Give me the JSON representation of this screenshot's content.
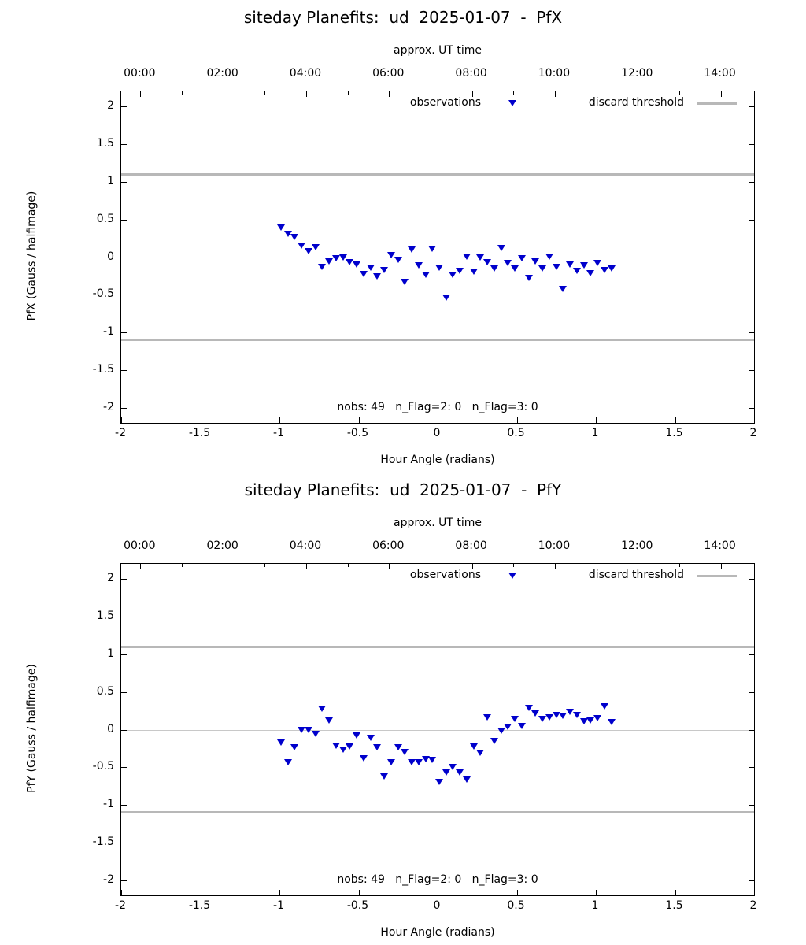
{
  "page": {
    "background": "#ffffff"
  },
  "colors": {
    "marker_blue": "#0000cc",
    "threshold_gray": "#b8b8b8",
    "zero_line_gray": "#c8c8c8",
    "axis_black": "#000000",
    "text_black": "#000000"
  },
  "stats": {
    "nobs": 49,
    "n_flag2": 0,
    "n_flag3": 0
  },
  "chart_data": [
    {
      "type": "scatter",
      "title": "siteday Planefits:  ud  2025-01-07  -  PfX",
      "x2label": "approx. UT time",
      "xlabel": "Hour Angle (radians)",
      "ylabel": "PfX (Gauss / halfimage)",
      "xlim": [
        -2,
        2
      ],
      "ylim": [
        -2.2,
        2.2
      ],
      "grid": false,
      "legend_position": "top-right-inside",
      "xtick_values": [
        -2,
        -1.5,
        -1,
        -0.5,
        0,
        0.5,
        1,
        1.5,
        2
      ],
      "xtick_labels": [
        "-2",
        "-1.5",
        "-1",
        "-0.5",
        "0",
        "0.5",
        "1",
        "1.5",
        "2"
      ],
      "ytick_values": [
        2,
        1.5,
        1,
        0.5,
        0,
        -0.5,
        -1,
        -1.5,
        -2
      ],
      "ytick_labels": [
        "2",
        "1.5",
        "1",
        "0.5",
        "0",
        "-0.5",
        "-1",
        "-1.5",
        "-2"
      ],
      "x2tick_labels": [
        "00:00",
        "02:00",
        "04:00",
        "06:00",
        "08:00",
        "10:00",
        "12:00",
        "14:00"
      ],
      "x2tick_positions": [
        -1.879,
        -1.355,
        -0.831,
        -0.307,
        0.217,
        0.741,
        1.265,
        1.789
      ],
      "zero_line": 0,
      "thresholds": [
        1.1,
        -1.1
      ],
      "legend": {
        "observations_label": "observations",
        "threshold_label": "discard threshold"
      },
      "stats_text": "nobs: 49   n_Flag=2: 0   n_Flag=3: 0",
      "series": [
        {
          "name": "observations",
          "marker": "triangle-down",
          "color": "#0000cc",
          "points": [
            [
              -0.99,
              0.39
            ],
            [
              -0.947,
              0.31
            ],
            [
              -0.903,
              0.27
            ],
            [
              -0.86,
              0.15
            ],
            [
              -0.816,
              0.08
            ],
            [
              -0.773,
              0.13
            ],
            [
              -0.729,
              -0.13
            ],
            [
              -0.686,
              -0.06
            ],
            [
              -0.642,
              -0.02
            ],
            [
              -0.599,
              0.0
            ],
            [
              -0.555,
              -0.07
            ],
            [
              -0.512,
              -0.1
            ],
            [
              -0.468,
              -0.22
            ],
            [
              -0.425,
              -0.14
            ],
            [
              -0.381,
              -0.26
            ],
            [
              -0.338,
              -0.17
            ],
            [
              -0.294,
              0.03
            ],
            [
              -0.251,
              -0.04
            ],
            [
              -0.207,
              -0.33
            ],
            [
              -0.164,
              0.1
            ],
            [
              -0.12,
              -0.11
            ],
            [
              -0.077,
              -0.24
            ],
            [
              -0.033,
              0.11
            ],
            [
              0.01,
              -0.14
            ],
            [
              0.054,
              -0.54
            ],
            [
              0.097,
              -0.24
            ],
            [
              0.141,
              -0.18
            ],
            [
              0.184,
              0.01
            ],
            [
              0.228,
              -0.19
            ],
            [
              0.271,
              -0.01
            ],
            [
              0.315,
              -0.07
            ],
            [
              0.358,
              -0.15
            ],
            [
              0.402,
              0.12
            ],
            [
              0.445,
              -0.08
            ],
            [
              0.489,
              -0.15
            ],
            [
              0.532,
              -0.02
            ],
            [
              0.576,
              -0.28
            ],
            [
              0.619,
              -0.06
            ],
            [
              0.663,
              -0.15
            ],
            [
              0.706,
              0.01
            ],
            [
              0.75,
              -0.13
            ],
            [
              0.793,
              -0.42
            ],
            [
              0.837,
              -0.1
            ],
            [
              0.88,
              -0.18
            ],
            [
              0.924,
              -0.11
            ],
            [
              0.967,
              -0.21
            ],
            [
              1.011,
              -0.08
            ],
            [
              1.054,
              -0.17
            ],
            [
              1.098,
              -0.15
            ]
          ]
        }
      ]
    },
    {
      "type": "scatter",
      "title": "siteday Planefits:  ud  2025-01-07  -  PfY",
      "x2label": "approx. UT time",
      "xlabel": "Hour Angle (radians)",
      "ylabel": "PfY (Gauss / halfimage)",
      "xlim": [
        -2,
        2
      ],
      "ylim": [
        -2.2,
        2.2
      ],
      "grid": false,
      "legend_position": "top-right-inside",
      "xtick_values": [
        -2,
        -1.5,
        -1,
        -0.5,
        0,
        0.5,
        1,
        1.5,
        2
      ],
      "xtick_labels": [
        "-2",
        "-1.5",
        "-1",
        "-0.5",
        "0",
        "0.5",
        "1",
        "1.5",
        "2"
      ],
      "ytick_values": [
        2,
        1.5,
        1,
        0.5,
        0,
        -0.5,
        -1,
        -1.5,
        -2
      ],
      "ytick_labels": [
        "2",
        "1.5",
        "1",
        "0.5",
        "0",
        "-0.5",
        "-1",
        "-1.5",
        "-2"
      ],
      "x2tick_labels": [
        "00:00",
        "02:00",
        "04:00",
        "06:00",
        "08:00",
        "10:00",
        "12:00",
        "14:00"
      ],
      "x2tick_positions": [
        -1.879,
        -1.355,
        -0.831,
        -0.307,
        0.217,
        0.741,
        1.265,
        1.789
      ],
      "zero_line": 0,
      "thresholds": [
        1.1,
        -1.1
      ],
      "legend": {
        "observations_label": "observations",
        "threshold_label": "discard threshold"
      },
      "stats_text": "nobs: 49   n_Flag=2: 0   n_Flag=3: 0",
      "series": [
        {
          "name": "observations",
          "marker": "triangle-down",
          "color": "#0000cc",
          "points": [
            [
              -0.99,
              -0.17
            ],
            [
              -0.947,
              -0.43
            ],
            [
              -0.903,
              -0.23
            ],
            [
              -0.86,
              -0.01
            ],
            [
              -0.816,
              -0.01
            ],
            [
              -0.773,
              -0.06
            ],
            [
              -0.729,
              0.28
            ],
            [
              -0.686,
              0.12
            ],
            [
              -0.642,
              -0.21
            ],
            [
              -0.599,
              -0.27
            ],
            [
              -0.555,
              -0.22
            ],
            [
              -0.512,
              -0.08
            ],
            [
              -0.468,
              -0.38
            ],
            [
              -0.425,
              -0.11
            ],
            [
              -0.381,
              -0.24
            ],
            [
              -0.338,
              -0.62
            ],
            [
              -0.294,
              -0.43
            ],
            [
              -0.251,
              -0.24
            ],
            [
              -0.207,
              -0.3
            ],
            [
              -0.164,
              -0.43
            ],
            [
              -0.12,
              -0.43
            ],
            [
              -0.077,
              -0.39
            ],
            [
              -0.033,
              -0.4
            ],
            [
              0.01,
              -0.7
            ],
            [
              0.054,
              -0.57
            ],
            [
              0.097,
              -0.5
            ],
            [
              0.141,
              -0.57
            ],
            [
              0.184,
              -0.66
            ],
            [
              0.228,
              -0.22
            ],
            [
              0.271,
              -0.31
            ],
            [
              0.315,
              0.16
            ],
            [
              0.358,
              -0.15
            ],
            [
              0.402,
              -0.02
            ],
            [
              0.445,
              0.04
            ],
            [
              0.489,
              0.14
            ],
            [
              0.532,
              0.05
            ],
            [
              0.576,
              0.29
            ],
            [
              0.619,
              0.21
            ],
            [
              0.663,
              0.14
            ],
            [
              0.706,
              0.16
            ],
            [
              0.75,
              0.19
            ],
            [
              0.793,
              0.18
            ],
            [
              0.837,
              0.23
            ],
            [
              0.88,
              0.19
            ],
            [
              0.924,
              0.11
            ],
            [
              0.967,
              0.12
            ],
            [
              1.011,
              0.15
            ],
            [
              1.054,
              0.31
            ],
            [
              1.098,
              0.1
            ]
          ]
        }
      ]
    }
  ]
}
